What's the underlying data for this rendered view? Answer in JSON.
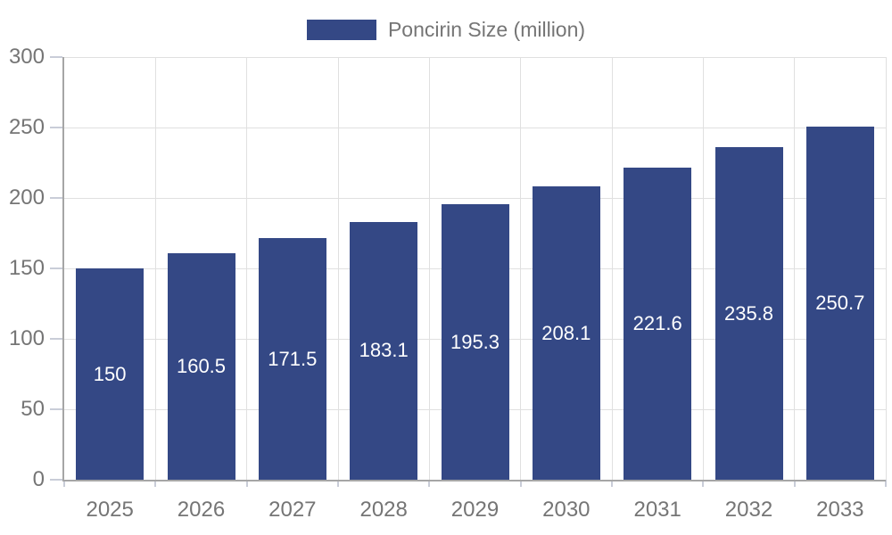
{
  "chart_data": {
    "type": "bar",
    "title": "",
    "legend": {
      "label": "Poncirin Size (million)",
      "position": "top"
    },
    "categories": [
      "2025",
      "2026",
      "2027",
      "2028",
      "2029",
      "2030",
      "2031",
      "2032",
      "2033"
    ],
    "values": [
      150,
      160.5,
      171.5,
      183.1,
      195.3,
      208.1,
      221.6,
      235.8,
      250.7
    ],
    "value_labels": [
      "150",
      "160.5",
      "171.5",
      "183.1",
      "195.3",
      "208.1",
      "221.6",
      "235.8",
      "250.7"
    ],
    "xlabel": "",
    "ylabel": "",
    "ylim": [
      0,
      300
    ],
    "yticks": [
      0,
      50,
      100,
      150,
      200,
      250,
      300
    ],
    "grid": true,
    "legend_position": "top-center",
    "colors": {
      "bar": "#344885",
      "bar_label": "#ffffff",
      "grid": "#e0e0e0",
      "axis_line": "#a6a6a6",
      "tick_mark": "#c9cdd8",
      "axis_text": "#757575",
      "legend_text": "#757575",
      "background": "#ffffff"
    }
  }
}
